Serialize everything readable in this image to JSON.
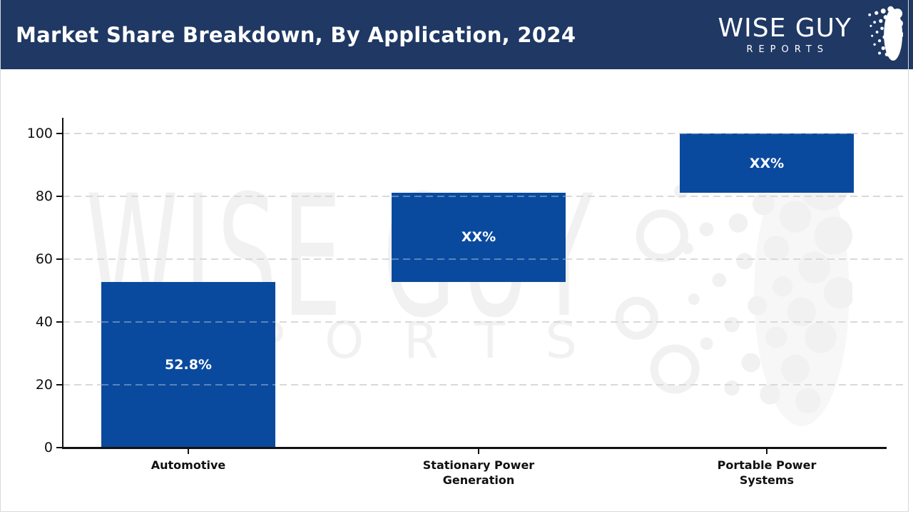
{
  "header": {
    "title": "Market Share Breakdown, By Application, 2024",
    "logo": {
      "line1": "WISE GUY",
      "line2": "REPORTS"
    }
  },
  "watermark": {
    "line1": "WISE GUY",
    "line2": "REPORTS"
  },
  "chart_data": {
    "type": "bar",
    "subtype": "stacked-breakdown-floating-segments",
    "title": "Market Share Breakdown, By Application, 2024",
    "categories": [
      "Automotive",
      "Stationary Power\nGeneration",
      "Portable Power\nSystems"
    ],
    "series": [
      {
        "name": "Automotive",
        "start": 0,
        "end": 52.8,
        "label": "52.8%"
      },
      {
        "name": "Stationary Power Generation",
        "start": 52.8,
        "end": 81.1,
        "label": "XX%"
      },
      {
        "name": "Portable Power Systems",
        "start": 81.1,
        "end": 100,
        "label": "XX%"
      }
    ],
    "xlabel": "",
    "ylabel": "",
    "ylim": [
      0,
      100
    ],
    "yticks": [
      0,
      20,
      40,
      60,
      80,
      100
    ],
    "grid": "horizontal-dashed",
    "legend_position": "none",
    "bar_color": "#0a4a9e",
    "bar_label_color": "#ffffff"
  },
  "colors": {
    "header_bg": "#1f3864",
    "bar": "#0a4a9e",
    "bar_label": "#ffffff",
    "grid": "#d9d9d9",
    "axis": "#111111",
    "text": "#111111",
    "title_text": "#ffffff",
    "watermark": "#f1f1f1",
    "border": "#d9d9d9"
  }
}
